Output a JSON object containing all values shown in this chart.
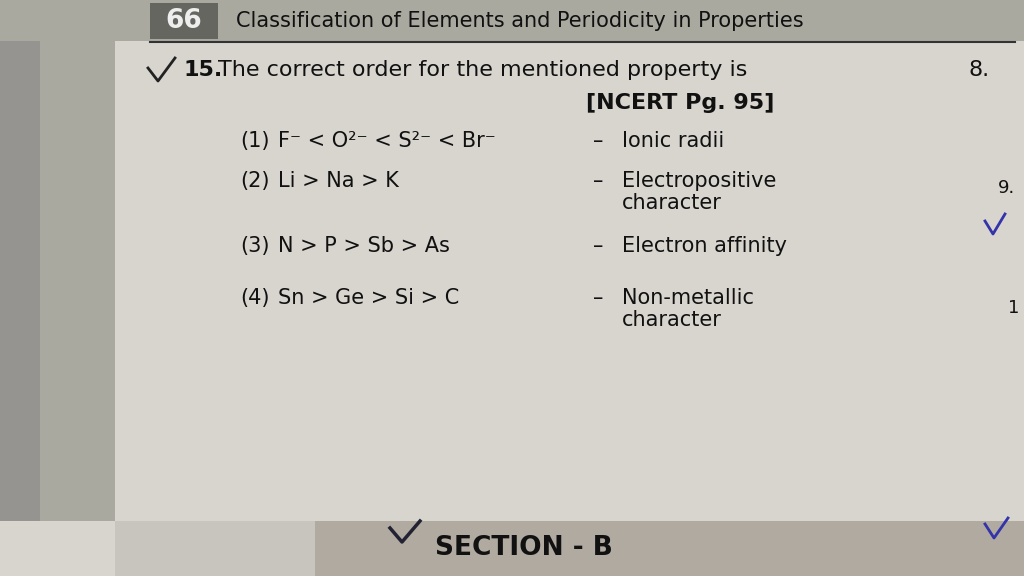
{
  "bg_main": "#d8d5cf",
  "bg_left_strip": "#888880",
  "bg_header": "#999990",
  "header_box_bg": "#666660",
  "header_num": "66",
  "header_title": "Classification of Elements and Periodicity in Properties",
  "question_num": "15.",
  "question_text": "The correct order for the mentioned property is",
  "question_right": "8.",
  "ncert_ref": "[NCERT Pg. 95]",
  "options": [
    {
      "num": "(1)",
      "formula": "F⁻ < O²⁻ < S²⁻ < Br⁻",
      "dash": "–",
      "property_line1": "Ionic radii",
      "property_line2": ""
    },
    {
      "num": "(2)",
      "formula": "Li > Na > K",
      "dash": "–",
      "property_line1": "Electropositive",
      "property_line2": "character"
    },
    {
      "num": "(3)",
      "formula": "N > P > Sb > As",
      "dash": "–",
      "property_line1": "Electron affinity",
      "property_line2": ""
    },
    {
      "num": "(4)",
      "formula": "Sn > Ge > Si > C",
      "dash": "–",
      "property_line1": "Non-metallic",
      "property_line2": "character"
    }
  ],
  "footer_bg": "#b0aaa0",
  "footer_text": "SECTION - B",
  "text_color": "#111111",
  "header_text_color": "#eeeeee",
  "line_color": "#333333"
}
